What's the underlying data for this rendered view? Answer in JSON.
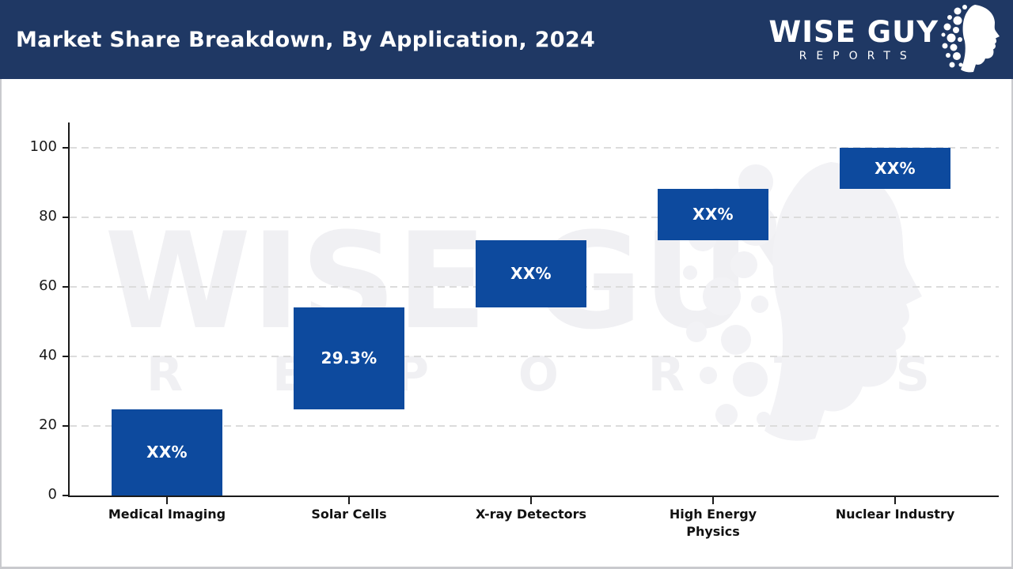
{
  "header": {
    "title": "Market Share Breakdown, By Application, 2024",
    "logo_line1": "WISE GUY",
    "logo_line2": "REPORTS",
    "bg_color": "#1f3864"
  },
  "watermark": {
    "line1": "WISE GUY",
    "line2": "R E P O R T S"
  },
  "chart_data": {
    "type": "bar",
    "subtype": "waterfall",
    "title": "Market Share Breakdown, By Application, 2024",
    "xlabel": "",
    "ylabel": "",
    "ylim": [
      0,
      107
    ],
    "yticks": [
      0,
      20,
      40,
      60,
      80,
      100
    ],
    "grid": "horizontal-dashed",
    "legend": "none",
    "bar_color": "#0d4a9e",
    "value_label_color": "#ffffff",
    "categories": [
      "Medical Imaging",
      "Solar Cells",
      "X-ray Detectors",
      "High Energy Physics",
      "Nuclear Industry"
    ],
    "bars": [
      {
        "category": "Medical Imaging",
        "category_lines": [
          "Medical Imaging"
        ],
        "start": 0,
        "end": 24.8,
        "value_label": "XX%"
      },
      {
        "category": "Solar Cells",
        "category_lines": [
          "Solar Cells"
        ],
        "start": 24.8,
        "end": 54.1,
        "value_label": "29.3%"
      },
      {
        "category": "X-ray Detectors",
        "category_lines": [
          "X-ray Detectors"
        ],
        "start": 54.1,
        "end": 73.4,
        "value_label": "XX%"
      },
      {
        "category": "High Energy Physics",
        "category_lines": [
          "High Energy",
          "Physics"
        ],
        "start": 73.4,
        "end": 88.2,
        "value_label": "XX%"
      },
      {
        "category": "Nuclear Industry",
        "category_lines": [
          "Nuclear Industry"
        ],
        "start": 88.2,
        "end": 100,
        "value_label": "XX%"
      }
    ]
  }
}
